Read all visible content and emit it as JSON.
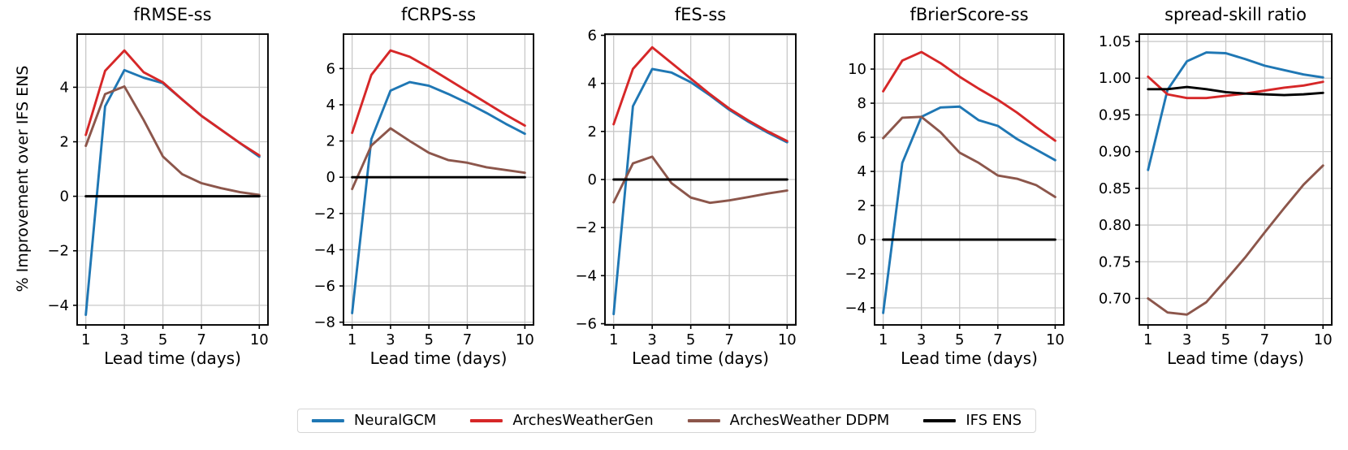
{
  "figure": {
    "ylabel": "% Improvement over IFS ENS"
  },
  "legend": {
    "items": [
      {
        "label": "NeuralGCM",
        "color": "#1f77b4"
      },
      {
        "label": "ArchesWeatherGen",
        "color": "#d62728"
      },
      {
        "label": "ArchesWeather DDPM",
        "color": "#8c564b"
      },
      {
        "label": "IFS ENS",
        "color": "#000000"
      }
    ]
  },
  "chart_data": [
    {
      "type": "line",
      "title": "fRMSE-ss",
      "xlabel": "Lead time (days)",
      "grid": true,
      "legend_position": "bottom-center-shared",
      "x": [
        1,
        2,
        3,
        4,
        5,
        6,
        7,
        8,
        9,
        10
      ],
      "xlim": [
        0.55,
        10.45
      ],
      "ylim": [
        -4.72,
        5.95
      ],
      "xticks": [
        {
          "value": 1,
          "label": "1"
        },
        {
          "value": 3,
          "label": "3"
        },
        {
          "value": 5,
          "label": "5"
        },
        {
          "value": 7,
          "label": "7"
        },
        {
          "value": 10,
          "label": "10"
        }
      ],
      "yticks": [
        {
          "value": -4,
          "label": "−4"
        },
        {
          "value": -2,
          "label": "−2"
        },
        {
          "value": 0,
          "label": "0"
        },
        {
          "value": 2,
          "label": "2"
        },
        {
          "value": 4,
          "label": "4"
        }
      ],
      "series": [
        {
          "name": "NeuralGCM",
          "color": "#1f77b4",
          "values": [
            -4.35,
            3.3,
            4.63,
            4.35,
            4.15,
            3.55,
            2.95,
            2.45,
            1.95,
            1.45
          ]
        },
        {
          "name": "ArchesWeatherGen",
          "color": "#d62728",
          "values": [
            2.25,
            4.6,
            5.35,
            4.55,
            4.18,
            3.55,
            2.95,
            2.45,
            1.95,
            1.5
          ]
        },
        {
          "name": "ArchesWeather DDPM",
          "color": "#8c564b",
          "values": [
            1.85,
            3.75,
            4.03,
            2.8,
            1.46,
            0.81,
            0.48,
            0.3,
            0.15,
            0.05
          ]
        },
        {
          "name": "IFS ENS",
          "color": "#000000",
          "values": [
            0,
            0,
            0,
            0,
            0,
            0,
            0,
            0,
            0,
            0
          ]
        }
      ]
    },
    {
      "type": "line",
      "title": "fCRPS-ss",
      "xlabel": "Lead time (days)",
      "grid": true,
      "x": [
        1,
        2,
        3,
        4,
        5,
        6,
        7,
        8,
        9,
        10
      ],
      "xlim": [
        0.55,
        10.45
      ],
      "ylim": [
        -8.15,
        7.9
      ],
      "xticks": [
        {
          "value": 1,
          "label": "1"
        },
        {
          "value": 3,
          "label": "3"
        },
        {
          "value": 5,
          "label": "5"
        },
        {
          "value": 7,
          "label": "7"
        },
        {
          "value": 10,
          "label": "10"
        }
      ],
      "yticks": [
        {
          "value": -8,
          "label": "−8"
        },
        {
          "value": -6,
          "label": "−6"
        },
        {
          "value": -4,
          "label": "−4"
        },
        {
          "value": -2,
          "label": "−2"
        },
        {
          "value": 0,
          "label": "0"
        },
        {
          "value": 2,
          "label": "2"
        },
        {
          "value": 4,
          "label": "4"
        },
        {
          "value": 6,
          "label": "6"
        }
      ],
      "series": [
        {
          "name": "NeuralGCM",
          "color": "#1f77b4",
          "values": [
            -7.5,
            2.1,
            4.78,
            5.25,
            5.05,
            4.6,
            4.1,
            3.55,
            2.95,
            2.4
          ]
        },
        {
          "name": "ArchesWeatherGen",
          "color": "#d62728",
          "values": [
            2.45,
            5.65,
            7.0,
            6.65,
            6.05,
            5.4,
            4.75,
            4.1,
            3.45,
            2.85
          ]
        },
        {
          "name": "ArchesWeather DDPM",
          "color": "#8c564b",
          "values": [
            -0.65,
            1.75,
            2.7,
            2.0,
            1.35,
            0.95,
            0.8,
            0.55,
            0.4,
            0.25
          ]
        },
        {
          "name": "IFS ENS",
          "color": "#000000",
          "values": [
            0,
            0,
            0,
            0,
            0,
            0,
            0,
            0,
            0,
            0
          ]
        }
      ]
    },
    {
      "type": "line",
      "title": "fES-ss",
      "xlabel": "Lead time (days)",
      "grid": true,
      "x": [
        1,
        2,
        3,
        4,
        5,
        6,
        7,
        8,
        9,
        10
      ],
      "xlim": [
        0.55,
        10.45
      ],
      "ylim": [
        -6.05,
        6.05
      ],
      "xticks": [
        {
          "value": 1,
          "label": "1"
        },
        {
          "value": 3,
          "label": "3"
        },
        {
          "value": 5,
          "label": "5"
        },
        {
          "value": 7,
          "label": "7"
        },
        {
          "value": 10,
          "label": "10"
        }
      ],
      "yticks": [
        {
          "value": -6,
          "label": "−6"
        },
        {
          "value": -4,
          "label": "−4"
        },
        {
          "value": -2,
          "label": "−2"
        },
        {
          "value": 0,
          "label": "0"
        },
        {
          "value": 2,
          "label": "2"
        },
        {
          "value": 4,
          "label": "4"
        },
        {
          "value": 6,
          "label": "6"
        }
      ],
      "series": [
        {
          "name": "NeuralGCM",
          "color": "#1f77b4",
          "values": [
            -5.6,
            3.05,
            4.6,
            4.45,
            4.05,
            3.5,
            2.9,
            2.4,
            1.95,
            1.55
          ]
        },
        {
          "name": "ArchesWeatherGen",
          "color": "#d62728",
          "values": [
            2.3,
            4.6,
            5.5,
            4.85,
            4.2,
            3.55,
            2.95,
            2.45,
            2.0,
            1.6
          ]
        },
        {
          "name": "ArchesWeather DDPM",
          "color": "#8c564b",
          "values": [
            -0.95,
            0.67,
            0.95,
            -0.15,
            -0.75,
            -0.97,
            -0.87,
            -0.73,
            -0.58,
            -0.46
          ]
        },
        {
          "name": "IFS ENS",
          "color": "#000000",
          "values": [
            0,
            0,
            0,
            0,
            0,
            0,
            0,
            0,
            0,
            0
          ]
        }
      ]
    },
    {
      "type": "line",
      "title": "fBrierScore-ss",
      "xlabel": "Lead time (days)",
      "grid": true,
      "x": [
        1,
        2,
        3,
        4,
        5,
        6,
        7,
        8,
        9,
        10
      ],
      "xlim": [
        0.55,
        10.45
      ],
      "ylim": [
        -5.0,
        12.05
      ],
      "xticks": [
        {
          "value": 1,
          "label": "1"
        },
        {
          "value": 3,
          "label": "3"
        },
        {
          "value": 5,
          "label": "5"
        },
        {
          "value": 7,
          "label": "7"
        },
        {
          "value": 10,
          "label": "10"
        }
      ],
      "yticks": [
        {
          "value": -4,
          "label": "−4"
        },
        {
          "value": -2,
          "label": "−2"
        },
        {
          "value": 0,
          "label": "0"
        },
        {
          "value": 2,
          "label": "2"
        },
        {
          "value": 4,
          "label": "4"
        },
        {
          "value": 6,
          "label": "6"
        },
        {
          "value": 8,
          "label": "8"
        },
        {
          "value": 10,
          "label": "10"
        }
      ],
      "series": [
        {
          "name": "NeuralGCM",
          "color": "#1f77b4",
          "values": [
            -4.3,
            4.5,
            7.2,
            7.75,
            7.8,
            7.0,
            6.67,
            5.9,
            5.28,
            4.66
          ]
        },
        {
          "name": "ArchesWeatherGen",
          "color": "#d62728",
          "values": [
            8.7,
            10.5,
            11.0,
            10.35,
            9.55,
            8.85,
            8.2,
            7.45,
            6.6,
            5.8
          ]
        },
        {
          "name": "ArchesWeather DDPM",
          "color": "#8c564b",
          "values": [
            5.95,
            7.15,
            7.2,
            6.3,
            5.1,
            4.5,
            3.76,
            3.57,
            3.2,
            2.5
          ]
        },
        {
          "name": "IFS ENS",
          "color": "#000000",
          "values": [
            0,
            0,
            0,
            0,
            0,
            0,
            0,
            0,
            0,
            0
          ]
        }
      ]
    },
    {
      "type": "line",
      "title": "spread-skill ratio",
      "xlabel": "Lead time (days)",
      "grid": true,
      "x": [
        1,
        2,
        3,
        4,
        5,
        6,
        7,
        8,
        9,
        10
      ],
      "xlim": [
        0.55,
        10.45
      ],
      "ylim": [
        0.664,
        1.06
      ],
      "xticks": [
        {
          "value": 1,
          "label": "1"
        },
        {
          "value": 3,
          "label": "3"
        },
        {
          "value": 5,
          "label": "5"
        },
        {
          "value": 7,
          "label": "7"
        },
        {
          "value": 10,
          "label": "10"
        }
      ],
      "yticks": [
        {
          "value": 0.7,
          "label": "0.70"
        },
        {
          "value": 0.75,
          "label": "0.75"
        },
        {
          "value": 0.8,
          "label": "0.80"
        },
        {
          "value": 0.85,
          "label": "0.85"
        },
        {
          "value": 0.9,
          "label": "0.90"
        },
        {
          "value": 0.95,
          "label": "0.95"
        },
        {
          "value": 1.0,
          "label": "1.00"
        },
        {
          "value": 1.05,
          "label": "1.05"
        }
      ],
      "series": [
        {
          "name": "NeuralGCM",
          "color": "#1f77b4",
          "values": [
            0.875,
            0.984,
            1.023,
            1.035,
            1.034,
            1.026,
            1.017,
            1.011,
            1.005,
            1.001
          ]
        },
        {
          "name": "ArchesWeatherGen",
          "color": "#d62728",
          "values": [
            1.002,
            0.978,
            0.973,
            0.973,
            0.976,
            0.979,
            0.983,
            0.987,
            0.99,
            0.995
          ]
        },
        {
          "name": "ArchesWeather DDPM",
          "color": "#8c564b",
          "values": [
            0.7,
            0.681,
            0.678,
            0.695,
            0.725,
            0.756,
            0.79,
            0.823,
            0.855,
            0.881
          ]
        },
        {
          "name": "IFS ENS",
          "color": "#000000",
          "values": [
            0.985,
            0.985,
            0.988,
            0.985,
            0.981,
            0.979,
            0.978,
            0.977,
            0.978,
            0.98
          ]
        }
      ]
    }
  ]
}
